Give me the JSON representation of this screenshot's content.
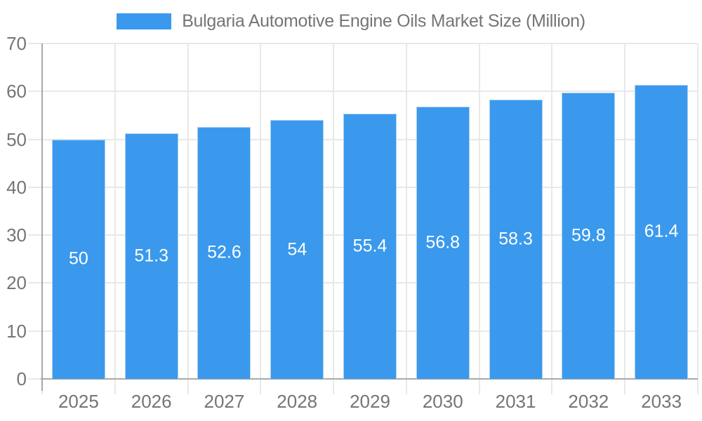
{
  "legend": {
    "label": "Bulgaria Automotive Engine Oils Market Size (Million)"
  },
  "colors": {
    "bar": "#3a99ec",
    "bar_border": "#aacff3",
    "grid": "#e8e8e8",
    "axis": "#a8a8a8",
    "axis_label": "#757575",
    "value_label": "#ffffff",
    "background": "#ffffff"
  },
  "chart_data": {
    "type": "bar",
    "title": "Bulgaria Automotive Engine Oils Market Size (Million)",
    "categories": [
      "2025",
      "2026",
      "2027",
      "2028",
      "2029",
      "2030",
      "2031",
      "2032",
      "2033"
    ],
    "values": [
      50,
      51.3,
      52.6,
      54,
      55.4,
      56.8,
      58.3,
      59.8,
      61.4
    ],
    "value_labels": [
      "50",
      "51.3",
      "52.6",
      "54",
      "55.4",
      "56.8",
      "58.3",
      "59.8",
      "61.4"
    ],
    "xlabel": "",
    "ylabel": "",
    "ylim": [
      0,
      70
    ],
    "ytick_step": 10,
    "ytick_labels": [
      "0",
      "10",
      "20",
      "30",
      "40",
      "50",
      "60",
      "70"
    ],
    "grid": "both",
    "legend_position": "top-center"
  }
}
